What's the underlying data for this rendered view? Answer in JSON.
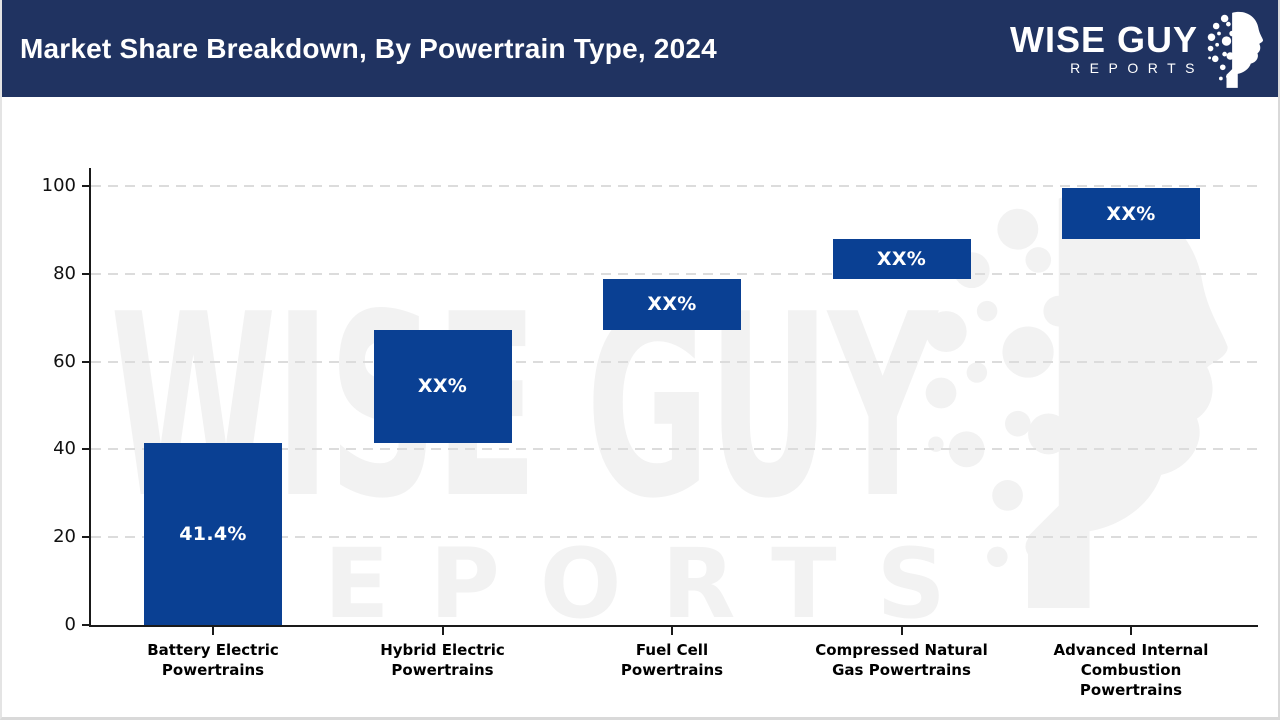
{
  "header": {
    "title": "Market Share Breakdown, By Powertrain Type, 2024",
    "logo": {
      "line1": "WISE GUY",
      "line2": "REPORTS"
    }
  },
  "watermark": {
    "line1": "WISE GUY",
    "line2": "REPORTS"
  },
  "colors": {
    "header_bg": "#203361",
    "bar": "#0a4093",
    "gridline": "#dcdcdc",
    "axis": "#1a1a1a",
    "watermark": "#f2f2f2",
    "bar_label_text": "#ffffff",
    "title_text": "#ffffff"
  },
  "chart_data": {
    "type": "bar",
    "subtype": "waterfall",
    "title": "Market Share Breakdown, By Powertrain Type, 2024",
    "categories": [
      "Battery Electric\nPowertrains",
      "Hybrid Electric\nPowertrains",
      "Fuel Cell\nPowertrains",
      "Compressed Natural\nGas Powertrains",
      "Advanced Internal\nCombustion\nPowertrains"
    ],
    "segments": [
      {
        "category": "Battery Electric Powertrains",
        "start": 0,
        "end": 41.4,
        "label": "41.4%"
      },
      {
        "category": "Hybrid Electric Powertrains",
        "start": 41.4,
        "end": 67.3,
        "label": "XX%"
      },
      {
        "category": "Fuel Cell Powertrains",
        "start": 67.3,
        "end": 78.9,
        "label": "XX%"
      },
      {
        "category": "Compressed Natural Gas Powertrains",
        "start": 78.9,
        "end": 87.9,
        "label": "XX%"
      },
      {
        "category": "Advanced Internal Combustion Powertrains",
        "start": 87.9,
        "end": 99.5,
        "label": "XX%"
      }
    ],
    "xlabel": "",
    "ylabel": "",
    "yticks": [
      0,
      20,
      40,
      60,
      80,
      100
    ],
    "ylim": [
      0,
      104
    ],
    "grid": "horizontal-dashed",
    "legend": "none",
    "bar_color": "#0a4093"
  }
}
